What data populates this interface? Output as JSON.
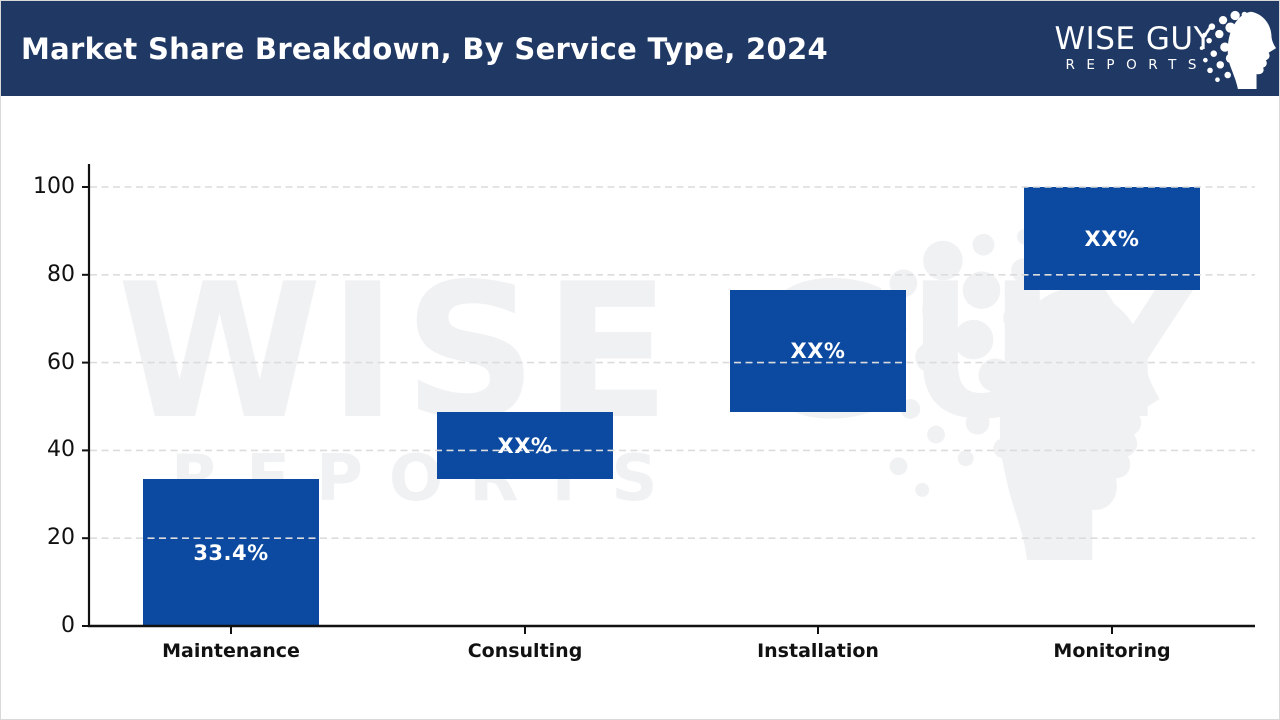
{
  "header": {
    "title": "Market Share Breakdown, By Service Type, 2024",
    "background_color": "#1f3864",
    "logo": {
      "line1": "WISE GUY",
      "line2": "REPORTS"
    }
  },
  "watermark": {
    "line1": "WISE GUY",
    "line2": "REPORTS"
  },
  "chart_data": {
    "type": "bar",
    "subtype": "waterfall",
    "title": "Market Share Breakdown, By Service Type, 2024",
    "xlabel": "",
    "ylabel": "",
    "ylim": [
      0,
      100
    ],
    "yticks": [
      0,
      20,
      40,
      60,
      80,
      100
    ],
    "grid": {
      "axis": "y",
      "style": "dashed",
      "color": "#dcdcdc",
      "above_bars": true
    },
    "bar_color": "#0b4aa0",
    "bar_label_color": "#ffffff",
    "axis_color": "#111111",
    "categories": [
      "Maintenance",
      "Consulting",
      "Installation",
      "Monitoring"
    ],
    "segments": [
      {
        "category": "Maintenance",
        "start": 0,
        "end": 33.4,
        "value_label": "33.4%"
      },
      {
        "category": "Consulting",
        "start": 33.4,
        "end": 48.8,
        "value_label": "XX%"
      },
      {
        "category": "Installation",
        "start": 48.8,
        "end": 76.5,
        "value_label": "XX%"
      },
      {
        "category": "Monitoring",
        "start": 76.5,
        "end": 100,
        "value_label": "XX%"
      }
    ]
  }
}
